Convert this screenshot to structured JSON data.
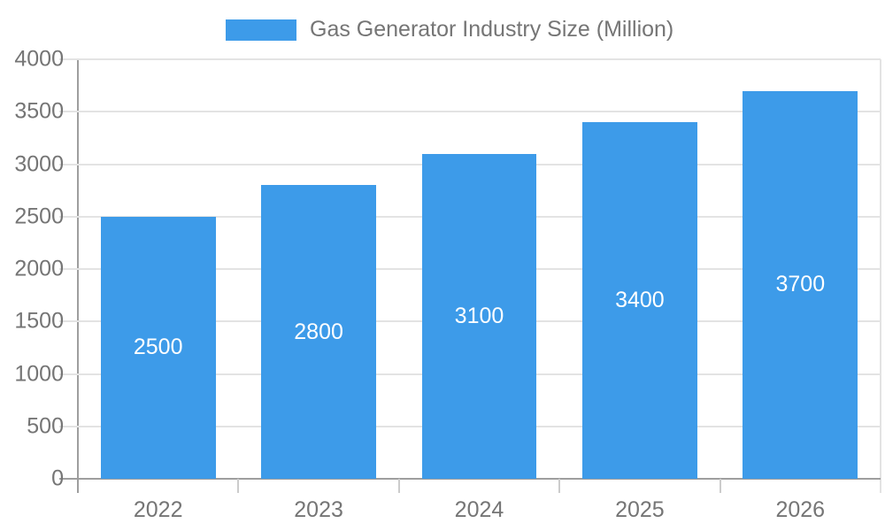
{
  "legend": {
    "label": "Gas Generator Industry Size (Million)",
    "position": "top"
  },
  "colors": {
    "bar": "#3D9BE9",
    "axis_text": "#757575",
    "bar_label_text": "#ffffff",
    "gridline": "#e3e3e3",
    "axis_line": "#9e9e9e",
    "category_tick": "#cccccc",
    "background": "#ffffff"
  },
  "chart_data": {
    "type": "bar",
    "title": "Gas Generator Industry Size (Million)",
    "categories": [
      "2022",
      "2023",
      "2024",
      "2025",
      "2026"
    ],
    "series": [
      {
        "name": "Gas Generator Industry Size (Million)",
        "values": [
          2500,
          2800,
          3100,
          3400,
          3700
        ]
      }
    ],
    "bar_value_labels": [
      "2500",
      "2800",
      "3100",
      "3400",
      "3700"
    ],
    "xlabel": "",
    "ylabel": "",
    "ylim": [
      0,
      4000
    ],
    "yticks": [
      0,
      500,
      1000,
      1500,
      2000,
      2500,
      3000,
      3500,
      4000
    ],
    "grid": true,
    "legend_position": "top-center",
    "bar_labels_inside": true
  }
}
